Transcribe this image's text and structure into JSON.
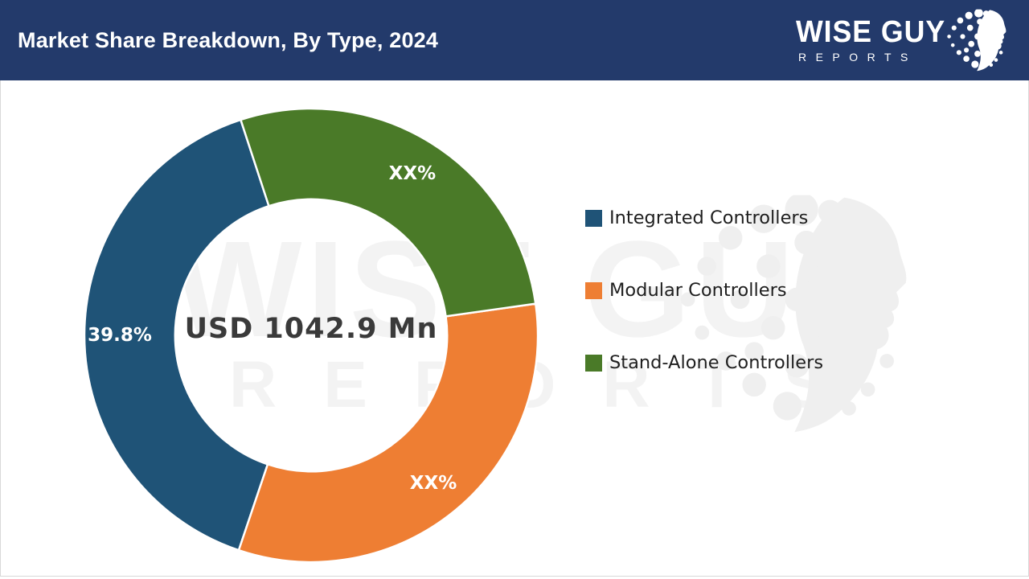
{
  "header": {
    "title": "Market Share Breakdown, By Type, 2024",
    "logo": {
      "line1": "WISE GUY",
      "line2": "REPORTS"
    }
  },
  "watermark": {
    "line1": "WISE GUY",
    "line2": "REPORTS"
  },
  "colors": {
    "header_navy": "#233a6b",
    "integrated_blue": "#1f5377",
    "modular_orange": "#ee7e33",
    "standalone_green": "#4a7a28",
    "center_text": "#3a3a3a",
    "watermark_gray": "#f3f3f3"
  },
  "chart_data": {
    "type": "pie",
    "title": "Market Share Breakdown, By Type, 2024",
    "center_label": "USD 1042.9 Mn",
    "donut": true,
    "inner_radius_ratio": 0.6,
    "start_angle_deg": 108.1,
    "direction": "counterclockwise",
    "legend_position": "right",
    "segments": [
      {
        "label": "Integrated Controllers",
        "display_value": "39.8%",
        "value_pct": 39.8,
        "color": "#1f5377"
      },
      {
        "label": "Modular Controllers",
        "display_value": "XX%",
        "value_pct": 32.4,
        "color": "#ee7e33"
      },
      {
        "label": "Stand-Alone Controllers",
        "display_value": "XX%",
        "value_pct": 27.8,
        "color": "#4a7a28"
      }
    ]
  }
}
